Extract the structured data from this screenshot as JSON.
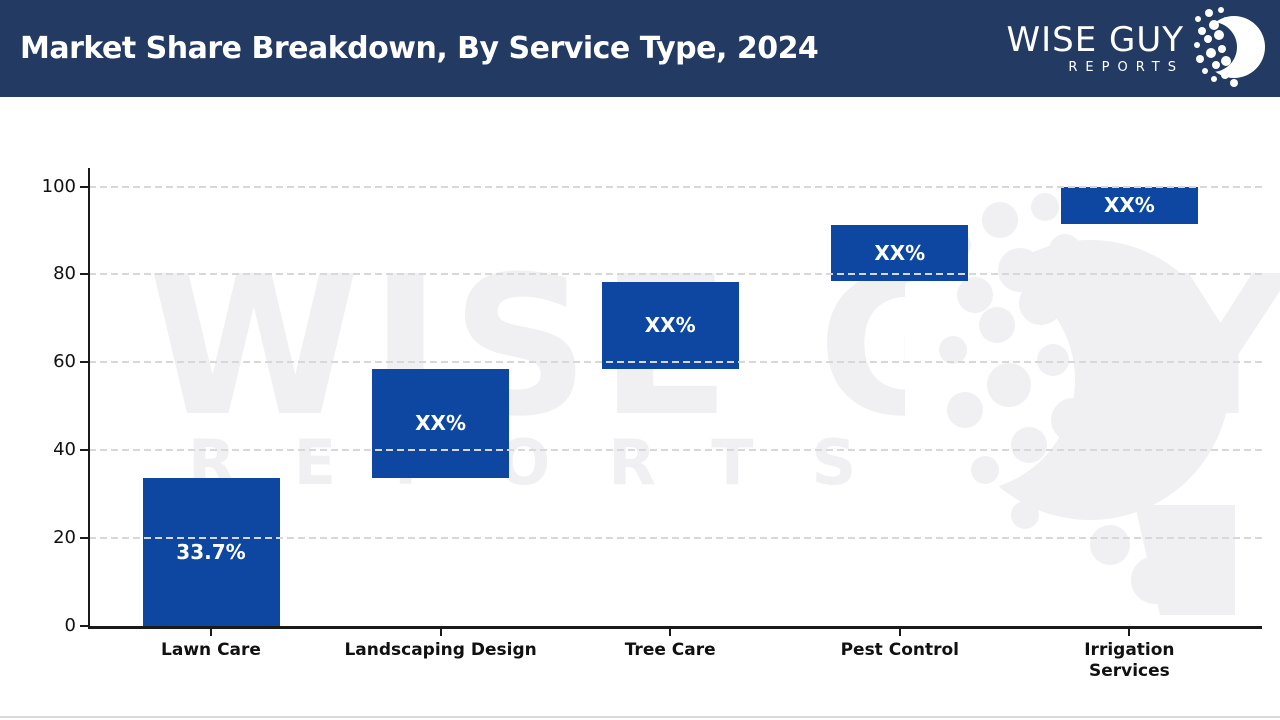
{
  "header": {
    "title": "Market Share Breakdown, By Service Type, 2024",
    "bg_color": "#233b63",
    "logo": {
      "line1": "WISE GUY",
      "line2": "REPORTS"
    }
  },
  "watermark": {
    "line1": "WISE GUY",
    "line2": "REPORTS"
  },
  "chart_data": {
    "type": "bar",
    "subtype": "floating-waterfall-segments",
    "title": "Market Share Breakdown, By Service Type, 2024",
    "categories": [
      "Lawn Care",
      "Landscaping Design",
      "Tree Care",
      "Pest Control",
      "Irrigation\nServices"
    ],
    "segments": [
      {
        "category": "Lawn Care",
        "label": "33.7%",
        "start": 0,
        "end": 33.7
      },
      {
        "category": "Landscaping Design",
        "label": "XX%",
        "start": 33.7,
        "end": 58.5
      },
      {
        "category": "Tree Care",
        "label": "XX%",
        "start": 58.5,
        "end": 78.4
      },
      {
        "category": "Pest Control",
        "label": "XX%",
        "start": 78.6,
        "end": 91.3
      },
      {
        "category": "Irrigation Services",
        "label": "XX%",
        "start": 91.5,
        "end": 100
      }
    ],
    "bar_labels": [
      "33.7%",
      "XX%",
      "XX%",
      "XX%",
      "XX%"
    ],
    "yticks": [
      0,
      20,
      40,
      60,
      80,
      100
    ],
    "ylim": [
      0,
      104
    ],
    "xlabel": "",
    "ylabel": "",
    "grid": "horizontal-dashed",
    "legend": "none",
    "bar_color": "#0d47a1",
    "bar_label_color": "#ffffff",
    "gridline_color": "#d8d8d8",
    "axis_color": "#1a1a1a"
  }
}
